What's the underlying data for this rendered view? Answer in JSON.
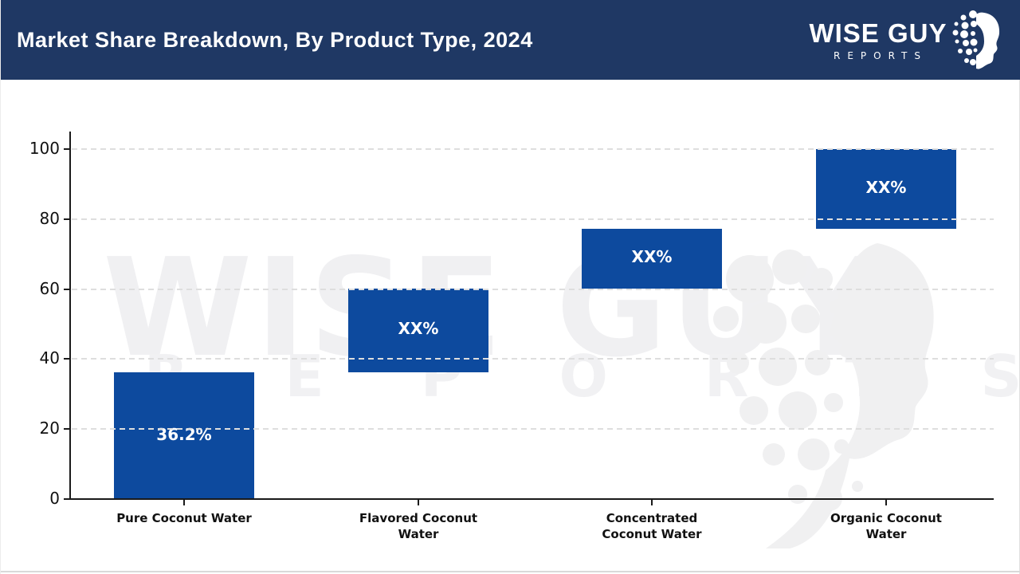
{
  "header": {
    "title": "Market Share Breakdown, By Product Type, 2024",
    "logo": {
      "line1": "WISE GUY",
      "line2": "REPORTS"
    }
  },
  "watermark": {
    "line1": "WISE GUY",
    "line2": "R E P O R T S"
  },
  "colors": {
    "header_bg": "#1f3864",
    "bar_fill": "#0d4a9e",
    "gridline": "#dedede",
    "axis": "#1a1a1a",
    "value_label": "#ffffff",
    "watermark": "#f0f0f2"
  },
  "chart_data": {
    "type": "bar",
    "subtype": "waterfall (floating stacked segments)",
    "title": "Market Share Breakdown, By Product Type, 2024",
    "xlabel": "",
    "ylabel": "",
    "ylim": [
      0,
      105
    ],
    "yticks": [
      0,
      20,
      40,
      60,
      80,
      100
    ],
    "grid": "horizontal dashed lines drawn over bars",
    "legend": "none",
    "categories": [
      "Pure Coconut Water",
      "Flavored Coconut\nWater",
      "Concentrated\nCoconut Water",
      "Organic Coconut\nWater"
    ],
    "bars": [
      {
        "category": "Pure Coconut Water",
        "label": "36.2%",
        "start": 0,
        "end": 36.2
      },
      {
        "category": "Flavored Coconut\nWater",
        "label": "XX%",
        "start": 36.2,
        "end": 60.2
      },
      {
        "category": "Concentrated\nCoconut Water",
        "label": "XX%",
        "start": 60.2,
        "end": 77.3
      },
      {
        "category": "Organic Coconut\nWater",
        "label": "XX%",
        "start": 77.3,
        "end": 100
      }
    ]
  }
}
